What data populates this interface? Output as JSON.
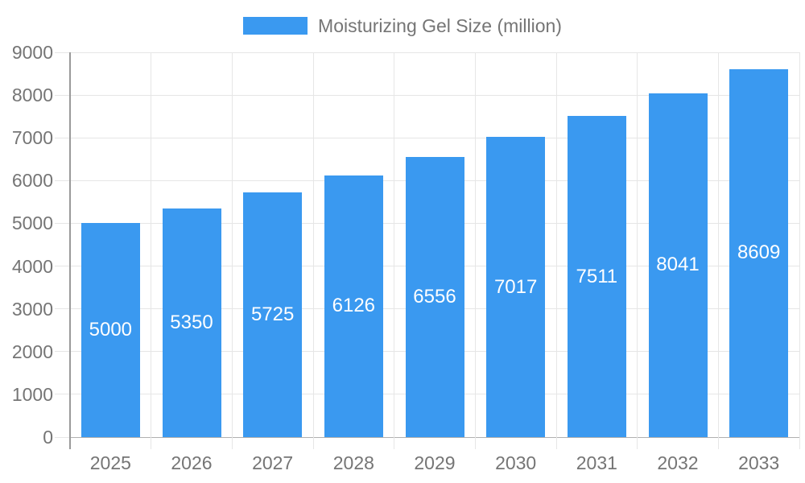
{
  "legend": {
    "swatch_color": "#3A99F0"
  },
  "chart_data": {
    "type": "bar",
    "title": "Moisturizing Gel Size (million)",
    "categories": [
      "2025",
      "2026",
      "2027",
      "2028",
      "2029",
      "2030",
      "2031",
      "2032",
      "2033"
    ],
    "series": [
      {
        "name": "Moisturizing Gel Size (million)",
        "values": [
          5000,
          5350,
          5725,
          6126,
          6556,
          7017,
          7511,
          8041,
          8609
        ]
      }
    ],
    "xlabel": "",
    "ylabel": "",
    "ylim": [
      0,
      9000
    ],
    "y_ticks": [
      0,
      1000,
      2000,
      3000,
      4000,
      5000,
      6000,
      7000,
      8000,
      9000
    ],
    "grid": true,
    "legend_position": "top-center",
    "value_labels": "inside-middle",
    "colors": {
      "bar": "#3A99F0",
      "grid": "#E6E6E6",
      "axis_baseline": "#B0B0B0",
      "axis_line": "#9A9A9A",
      "axis_text": "#757575",
      "value_text": "#FFFFFF",
      "background": "#FFFFFF"
    }
  }
}
